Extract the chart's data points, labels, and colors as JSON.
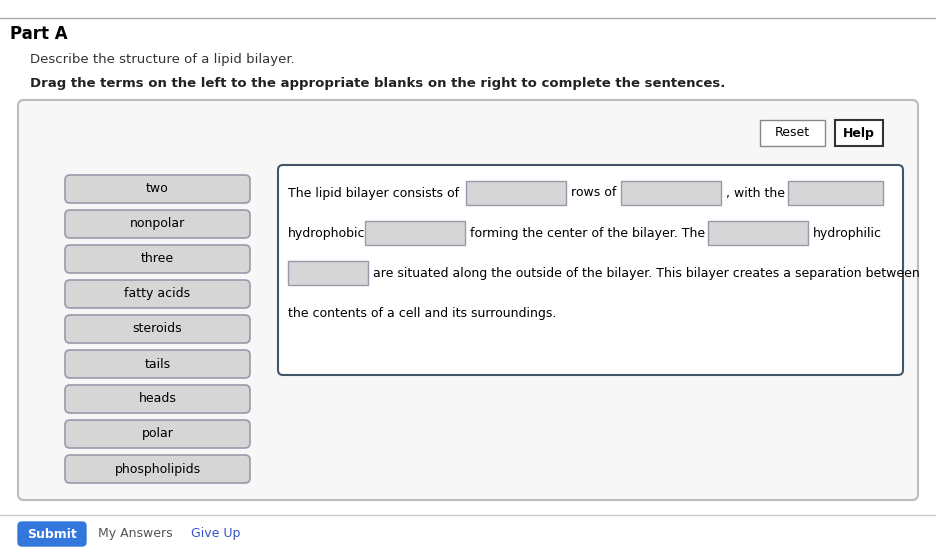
{
  "title": "Part A",
  "subtitle": "Describe the structure of a lipid bilayer.",
  "instruction": "Drag the terms on the left to the appropriate blanks on the right to complete the sentences.",
  "bg_color": "#ffffff",
  "panel_bg": "#f7f7f7",
  "panel_border": "#bbbbbb",
  "term_labels": [
    "two",
    "nonpolar",
    "three",
    "fatty acids",
    "steroids",
    "tails",
    "heads",
    "polar",
    "phospholipids"
  ],
  "term_box_color": "#d6d6d6",
  "term_box_border": "#9999aa",
  "blank_box_color": "#d6d6d6",
  "blank_box_border": "#9999aa",
  "text_box_border": "#445566",
  "sentence_line1_pre1": "The lipid bilayer consists of",
  "sentence_line1_mid1": "rows of",
  "sentence_line1_mid2": ", with the",
  "sentence_line2_pre1": "hydrophobic",
  "sentence_line2_mid1": "forming the center of the bilayer. The",
  "sentence_line2_suf1": "hydrophilic",
  "sentence_line3_text": "are situated along the outside of the bilayer. This bilayer creates a separation between",
  "sentence_line4_text": "the contents of a cell and its surroundings.",
  "reset_label": "Reset",
  "help_label": "Help",
  "submit_label": "Submit",
  "myanswers_label": "My Answers",
  "giveup_label": "Give Up",
  "submit_color": "#3377dd",
  "giveup_color": "#3355cc",
  "top_line_color": "#aaaaaa",
  "bottom_line_color": "#cccccc"
}
